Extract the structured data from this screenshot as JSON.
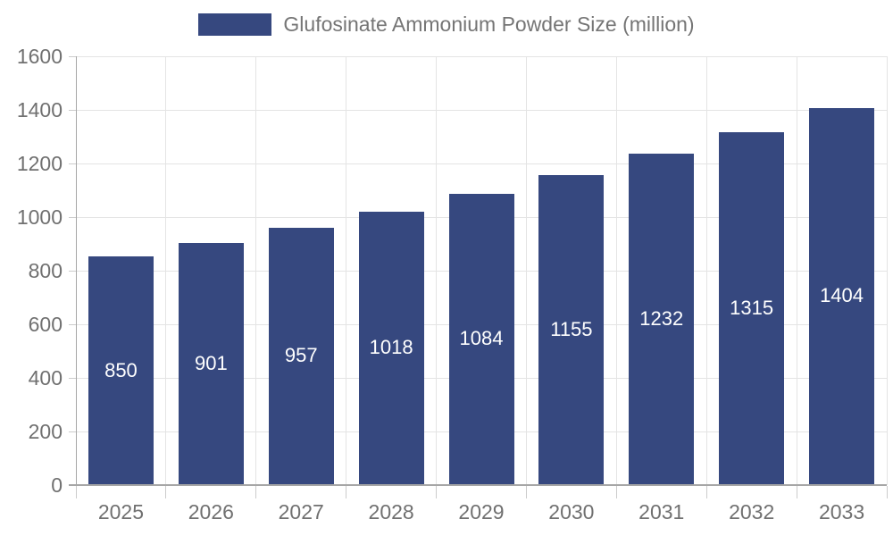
{
  "legend": {
    "label": "Glufosinate Ammonium Powder Size (million)"
  },
  "chart_data": {
    "type": "bar",
    "title": "Glufosinate Ammonium Powder Size (million)",
    "categories": [
      "2025",
      "2026",
      "2027",
      "2028",
      "2029",
      "2030",
      "2031",
      "2032",
      "2033"
    ],
    "values": [
      850,
      901,
      957,
      1018,
      1084,
      1155,
      1232,
      1315,
      1404
    ],
    "xlabel": "",
    "ylabel": "",
    "ylim": [
      0,
      1600
    ],
    "ytick_step": 200,
    "yticks": [
      0,
      200,
      400,
      600,
      800,
      1000,
      1200,
      1400,
      1600
    ],
    "grid": true,
    "legend_position": "top-center",
    "bar_labels_inside": true,
    "colors": {
      "bar": "#36487F",
      "grid_line": "#E4E4E4",
      "axis_line": "#A6A6A6",
      "tick_line": "#CCCCCC",
      "axis_label_text": "#707070",
      "legend_text": "#757575",
      "bar_label_text": "#FFFFFF",
      "background": "#FFFFFF"
    }
  }
}
